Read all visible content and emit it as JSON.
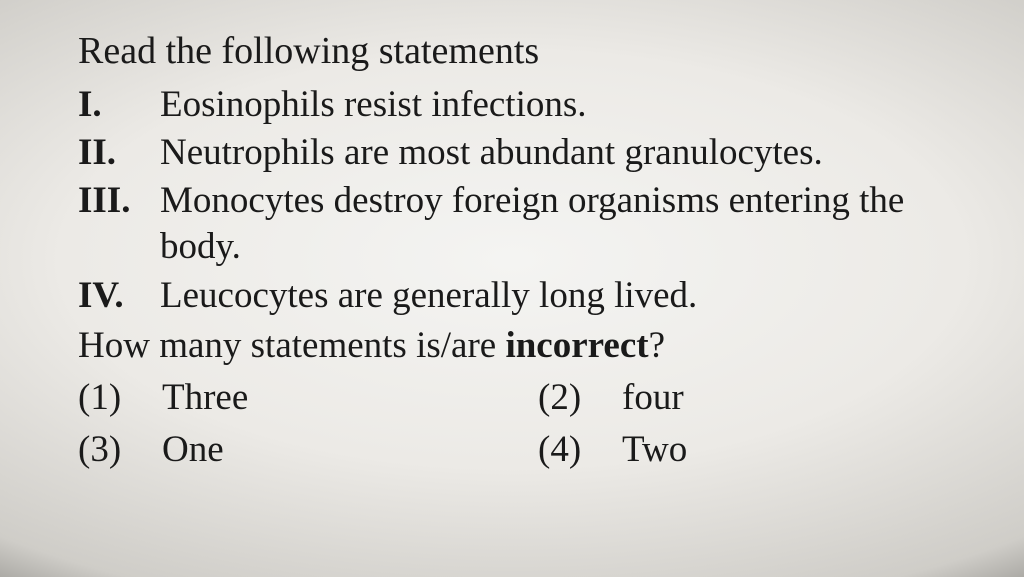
{
  "stem": "Read the following statements",
  "statements": [
    {
      "num": "I.",
      "text": "Eosinophils resist infections."
    },
    {
      "num": "II.",
      "text": "Neutrophils are most abundant granulocytes."
    },
    {
      "num": "III.",
      "text": "Monocytes destroy foreign organisms entering the body."
    },
    {
      "num": "IV.",
      "text": "Leucocytes are generally long lived."
    }
  ],
  "question_prefix": "How many statements is/are ",
  "question_emph": "incorrect",
  "question_suffix": "?",
  "options": [
    {
      "label": "(1)",
      "text": "Three"
    },
    {
      "label": "(2)",
      "text": "four"
    },
    {
      "label": "(3)",
      "text": "One"
    },
    {
      "label": "(4)",
      "text": "Two"
    }
  ],
  "style": {
    "font_family": "Times New Roman",
    "base_fontsize_pt": 28,
    "text_color": "#1a1a1a",
    "background_center": "#f4f4f2",
    "background_edge": "#1a1a1a"
  }
}
